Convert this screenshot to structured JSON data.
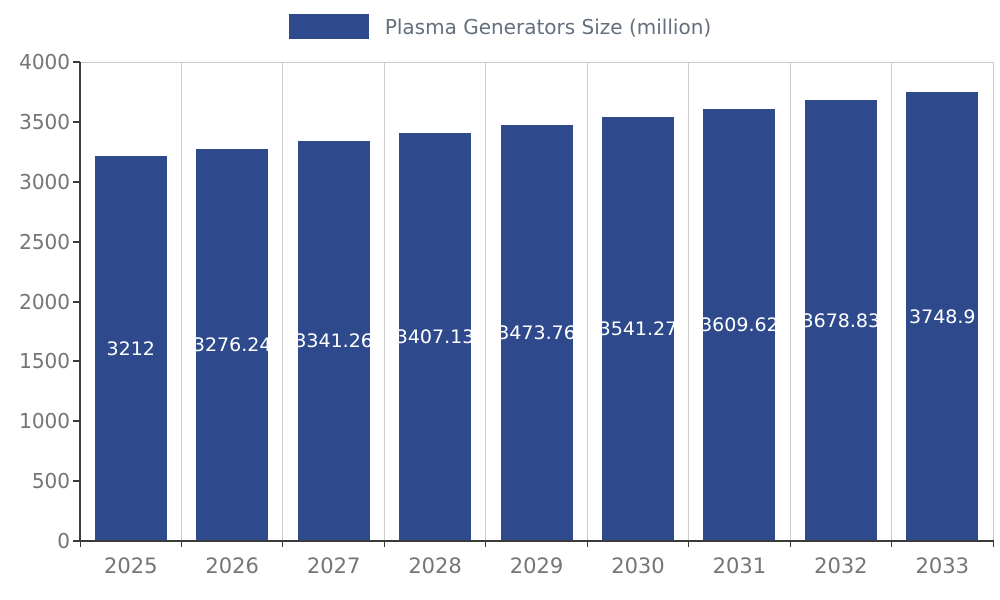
{
  "legend": {
    "label": "Plasma Generators Size (million)"
  },
  "chart_data": {
    "type": "bar",
    "title": "Plasma Generators Size (million)",
    "xlabel": "",
    "ylabel": "",
    "categories": [
      "2025",
      "2026",
      "2027",
      "2028",
      "2029",
      "2030",
      "2031",
      "2032",
      "2033"
    ],
    "values": [
      3212,
      3276.24,
      3341.26,
      3407.13,
      3473.76,
      3541.27,
      3609.62,
      3678.83,
      3748.9
    ],
    "bar_labels": [
      "3212",
      "3276.24",
      "3341.26",
      "3407.13",
      "3473.76",
      "3541.27",
      "3609.62",
      "3678.83",
      "3748.9"
    ],
    "ylim": [
      0,
      4000
    ],
    "yticks": [
      0,
      500,
      1000,
      1500,
      2000,
      2500,
      3000,
      3500,
      4000
    ],
    "grid": "vertical",
    "legend_position": "top",
    "bar_color": "#2e4a8d",
    "label_color": "#ffffff",
    "tick_label_color": "#757575",
    "grid_color": "#cccccc",
    "axis_color": "#3b3b3b"
  }
}
